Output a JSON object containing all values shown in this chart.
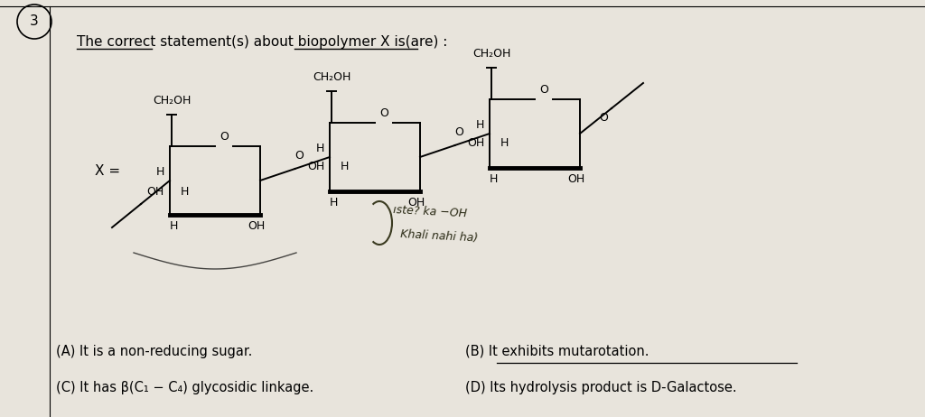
{
  "background_color": "#c8c4bc",
  "paper_color": "#e8e4dc",
  "question_number": "3",
  "question_text": "The correct statement(s) about biopolymer X is(are) :",
  "option_A": "(A) It is a non-reducing sugar.",
  "option_B": "(B) It exhibits mutarotation.",
  "option_C": "(C) It has β(C₁ − C₄) glycosidic linkage.",
  "option_D": "(D) Its hydrolysis product is D-Galactose.",
  "fig_width": 10.24,
  "fig_height": 4.62,
  "dpi": 100
}
